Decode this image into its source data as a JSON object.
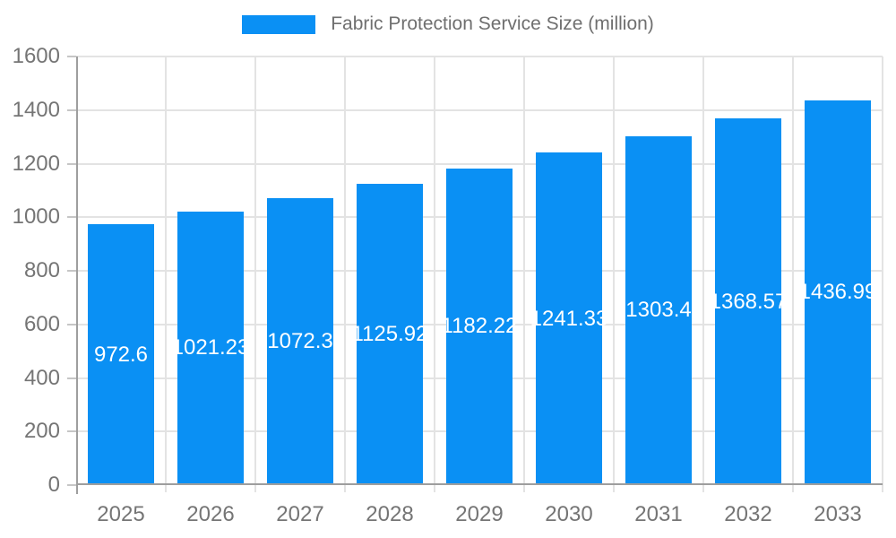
{
  "page": {
    "background": "#ffffff"
  },
  "chart_data": {
    "type": "bar",
    "title": "Fabric Protection Service Size (million)",
    "legend": {
      "position": "top",
      "entries": [
        "Fabric Protection Service Size (million)"
      ]
    },
    "categories": [
      "2025",
      "2026",
      "2027",
      "2028",
      "2029",
      "2030",
      "2031",
      "2032",
      "2033"
    ],
    "series": [
      {
        "name": "Fabric Protection Service Size (million)",
        "values": [
          972.6,
          1021.23,
          1072.3,
          1125.92,
          1182.22,
          1241.33,
          1303.4,
          1368.57,
          1436.99
        ]
      }
    ],
    "bar_value_labels": [
      "972.6",
      "1021.23",
      "1072.3",
      "1125.92",
      "1182.22",
      "1241.33",
      "1303.4",
      "1368.57",
      "1436.99"
    ],
    "xlabel": "",
    "ylabel": "",
    "ylim": [
      0,
      1600
    ],
    "yticks": [
      0,
      200,
      400,
      600,
      800,
      1000,
      1200,
      1400,
      1600
    ],
    "grid": true,
    "colors": {
      "bar": "#0a90f4",
      "grid": "#e3e3e3",
      "axis": "#9e9e9e",
      "tick": "#c6c6c6",
      "axisText": "#757575",
      "legendText": "#6f6f6f",
      "barLabel": "#ffffff"
    }
  }
}
